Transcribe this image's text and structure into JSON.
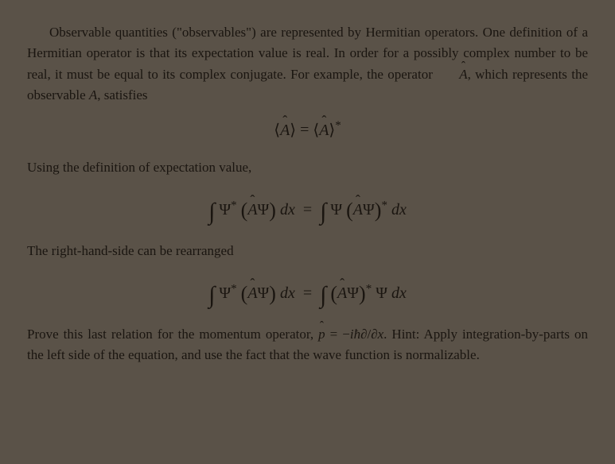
{
  "background_color": "#5a5248",
  "text_color": "#1a1510",
  "font_family": "Georgia, Times New Roman, serif",
  "body_fontsize": 17,
  "equation_fontsize": 20,
  "paragraphs": {
    "p1": "Observable quantities (\"observables\") are represented by Hermitian operators. One definition of a Hermitian operator is that its expectation value is real. In order for a possibly complex number to be real, it must be equal to its complex conjugate. For example, the operator Â, which represents the observable A, satisfies",
    "p2": "Using the definition of expectation value,",
    "p3": "The right-hand-side can be rearranged",
    "p4": "Prove this last relation for the momentum operator, p̂ = −iħ∂/∂x. Hint: Apply integration-by-parts on the left side of the equation, and use the fact that the wave function is normalizable."
  },
  "equations": {
    "eq1": "⟨Â⟩ = ⟨Â⟩*",
    "eq2": "∫ Ψ* (ÂΨ) dx = ∫ Ψ (ÂΨ)* dx",
    "eq3": "∫ Ψ* (ÂΨ) dx = ∫ (ÂΨ)* Ψ dx"
  }
}
